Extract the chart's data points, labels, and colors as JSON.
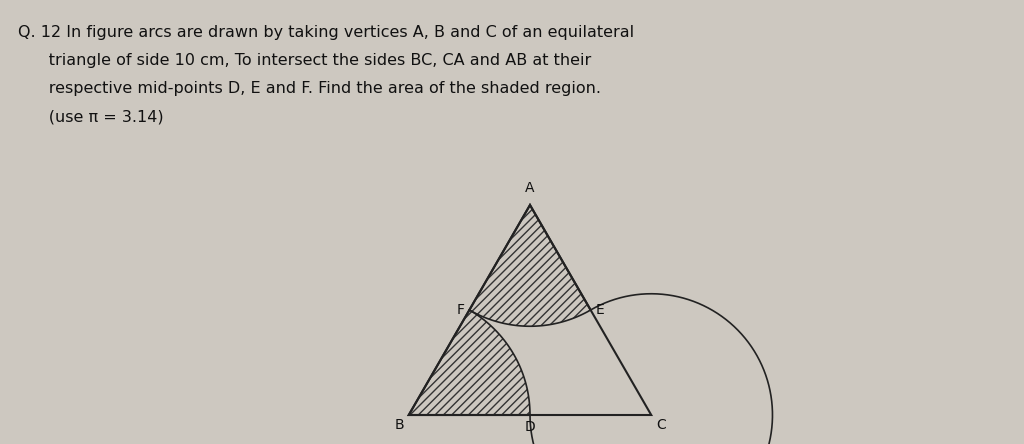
{
  "bg_color": "#cdc8c0",
  "triangle_color": "#222222",
  "hatch_color": "#333333",
  "text_color": "#111111",
  "font_size_text": 11.5,
  "font_size_label": 10,
  "label_A": "A",
  "label_B": "B",
  "label_C": "C",
  "label_D": "D",
  "label_E": "E",
  "label_F": "F",
  "line1": "Q. 12 In figure arcs are drawn by taking vertices A, B and C of an equilateral",
  "line2": "      triangle of side 10 cm, To intersect the sides BC, CA and AB at their",
  "line3": "      respective mid-points D, E and F. Find the area of the shaded region.",
  "line4": "      (use π = 3.14)"
}
